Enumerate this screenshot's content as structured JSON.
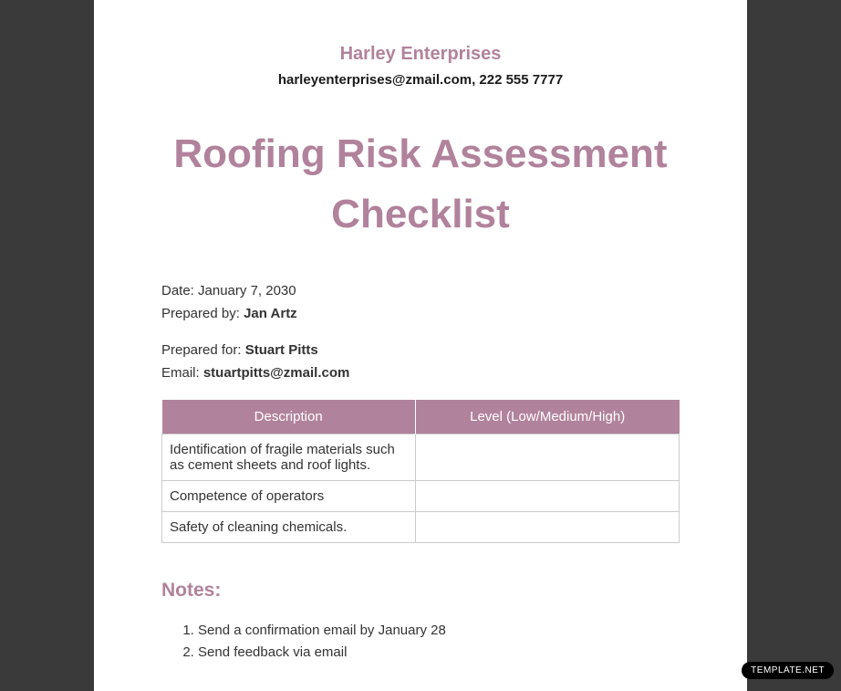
{
  "colors": {
    "accent": "#b1829b",
    "background": "#3a3a3a",
    "page_bg": "#ffffff",
    "text": "#333333",
    "table_border": "#cccccc",
    "header_text": "#ffffff"
  },
  "header": {
    "company_name": "Harley Enterprises",
    "contact": "harleyenterprises@zmail.com, 222 555 7777"
  },
  "title": "Roofing Risk Assessment Checklist",
  "meta": {
    "date_label": "Date: ",
    "date_value": "January 7, 2030",
    "prepared_by_label": "Prepared by: ",
    "prepared_by_value": "Jan Artz",
    "prepared_for_label": "Prepared for: ",
    "prepared_for_value": "Stuart Pitts",
    "email_label": "Email: ",
    "email_value": "stuartpitts@zmail.com"
  },
  "table": {
    "columns": [
      "Description",
      "Level (Low/Medium/High)"
    ],
    "rows": [
      [
        "Identification of fragile materials such as cement sheets and roof lights.",
        ""
      ],
      [
        "Competence of operators",
        ""
      ],
      [
        "Safety of cleaning chemicals.",
        ""
      ]
    ]
  },
  "notes": {
    "heading": "Notes:",
    "items": [
      "Send a confirmation email by January 28",
      "Send feedback via email"
    ]
  },
  "watermark": "TEMPLATE.NET"
}
